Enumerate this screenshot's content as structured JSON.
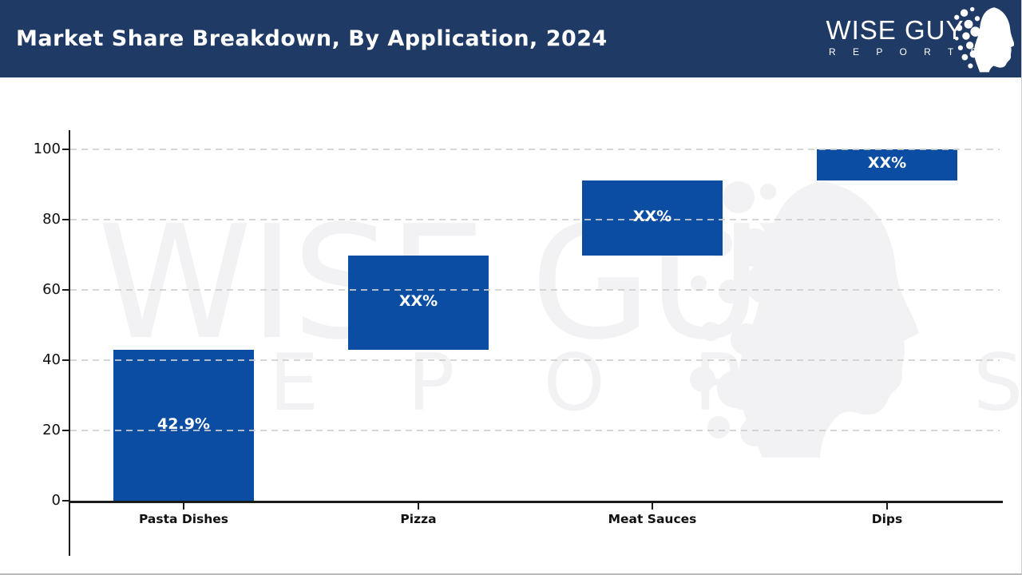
{
  "header": {
    "title": "Market Share Breakdown, By Application, 2024",
    "bg_color": "#203a66",
    "logo": {
      "line1": "WISE GUY",
      "line2": "R E P O R T S"
    }
  },
  "watermark": {
    "line1": "WISE GUY",
    "line2": "R E P O R T S"
  },
  "chart_data": {
    "type": "bar",
    "subtype": "waterfall-floating-bars",
    "title": "Market Share Breakdown, By Application, 2024",
    "categories": [
      "Pasta Dishes",
      "Pizza",
      "Meat Sauces",
      "Dips"
    ],
    "segments": [
      {
        "category": "Pasta Dishes",
        "start": 0,
        "end": 42.9,
        "label": "42.9%"
      },
      {
        "category": "Pizza",
        "start": 42.9,
        "end": 69.8,
        "label": "XX%"
      },
      {
        "category": "Meat Sauces",
        "start": 69.8,
        "end": 91.2,
        "label": "XX%"
      },
      {
        "category": "Dips",
        "start": 91.2,
        "end": 100,
        "label": "XX%"
      }
    ],
    "yticks": [
      0,
      20,
      40,
      60,
      80,
      100
    ],
    "ylim": [
      0,
      105.5
    ],
    "xlabel": "",
    "ylabel": "",
    "grid": "horizontal-dashed",
    "gridline_color": "#d9d9d9",
    "bar_color": "#0b4da2",
    "bar_label_color": "#ffffff",
    "axis_color": "#1a1a1a",
    "legend": "none"
  }
}
